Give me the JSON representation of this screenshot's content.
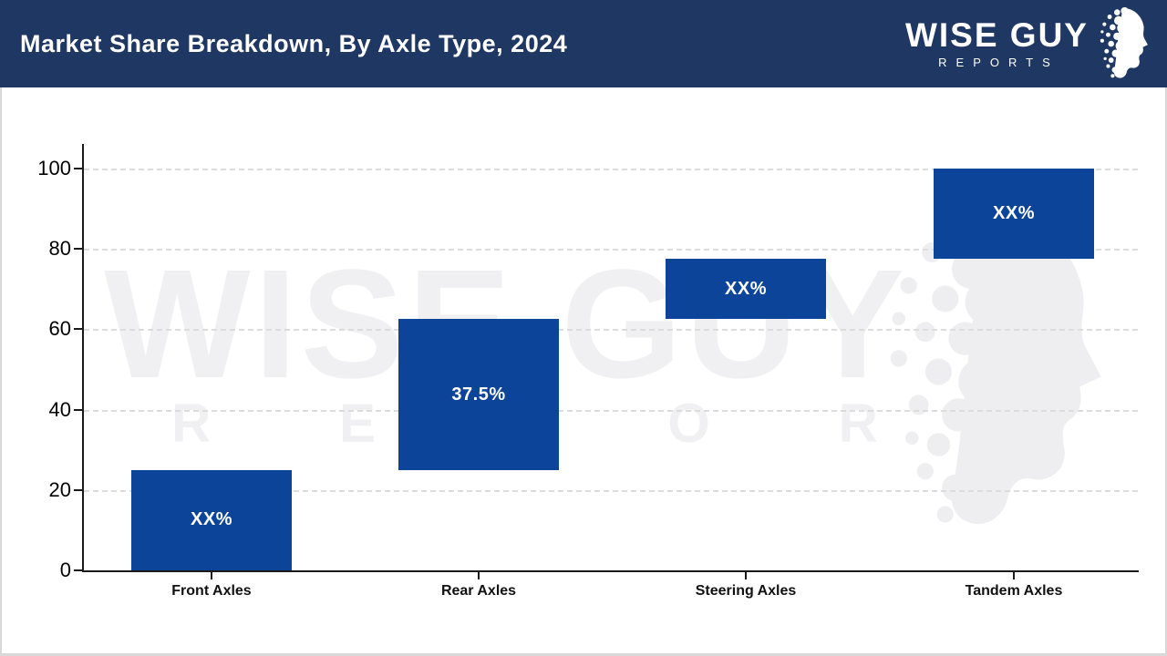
{
  "header": {
    "title": "Market Share Breakdown, By Axle Type, 2024",
    "bg_color": "#1f3763"
  },
  "logo": {
    "line1": "WISE GUY",
    "line2": "REPORTS"
  },
  "watermark": {
    "line1": "WISE GUY",
    "line2": "R E P O R T S"
  },
  "chart_data": {
    "type": "bar",
    "subtype": "floating-waterfall",
    "title": "Market Share Breakdown, By Axle Type, 2024",
    "categories": [
      "Front Axles",
      "Rear Axles",
      "Steering Axles",
      "Tandem Axles"
    ],
    "bars": [
      {
        "category": "Front Axles",
        "start": 0,
        "end": 25,
        "label": "XX%"
      },
      {
        "category": "Rear Axles",
        "start": 25,
        "end": 62.5,
        "label": "37.5%"
      },
      {
        "category": "Steering Axles",
        "start": 62.5,
        "end": 77.5,
        "label": "XX%"
      },
      {
        "category": "Tandem Axles",
        "start": 77.5,
        "end": 100,
        "label": "XX%"
      }
    ],
    "xlabel": "",
    "ylabel": "",
    "yticks": [
      0,
      20,
      40,
      60,
      80,
      100
    ],
    "gridline_values": [
      20,
      40,
      60,
      80,
      100
    ],
    "ylim": [
      0,
      106
    ],
    "grid": "horizontal-dashed",
    "legend": "none",
    "bar_color": "#0b4499",
    "bar_label_color": "#ffffff"
  }
}
